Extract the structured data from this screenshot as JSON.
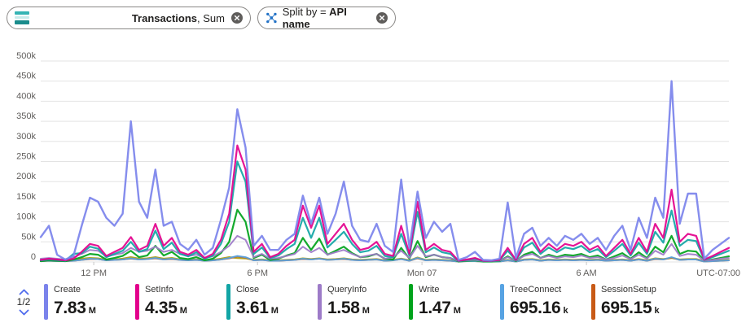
{
  "filters": {
    "metric": {
      "name": "Transactions",
      "aggregation": ", Sum"
    },
    "split": {
      "prefix": "Split by = ",
      "field": "API name"
    }
  },
  "chart_data": {
    "type": "line",
    "title": "",
    "xlabel": "",
    "ylabel": "",
    "grid": true,
    "legend_position": "bottom",
    "ylim": [
      0,
      500000
    ],
    "values_unit": "thousands",
    "y_axis": [
      {
        "label": "500k",
        "value": 500
      },
      {
        "label": "450k",
        "value": 450
      },
      {
        "label": "400k",
        "value": 400
      },
      {
        "label": "350k",
        "value": 350
      },
      {
        "label": "300k",
        "value": 300
      },
      {
        "label": "250k",
        "value": 250
      },
      {
        "label": "200k",
        "value": 200
      },
      {
        "label": "150k",
        "value": 150
      },
      {
        "label": "100k",
        "value": 100
      },
      {
        "label": "50k",
        "value": 50
      },
      {
        "label": "0",
        "value": 0
      }
    ],
    "x_ticks": [
      {
        "label": "12 PM",
        "pos": 0.077
      },
      {
        "label": "6 PM",
        "pos": 0.315
      },
      {
        "label": "Mon 07",
        "pos": 0.554
      },
      {
        "label": "6 AM",
        "pos": 0.793
      }
    ],
    "timezone_label": "UTC-07:00",
    "series": [
      {
        "name": "Create",
        "color": "#7B83EB",
        "width": 2.4,
        "values": [
          62,
          90,
          18,
          6,
          15,
          90,
          160,
          150,
          110,
          90,
          120,
          350,
          150,
          110,
          230,
          90,
          100,
          45,
          30,
          55,
          18,
          35,
          105,
          185,
          380,
          285,
          40,
          65,
          30,
          30,
          55,
          70,
          165,
          95,
          160,
          70,
          120,
          200,
          90,
          55,
          50,
          95,
          40,
          25,
          205,
          35,
          175,
          60,
          100,
          75,
          95,
          5,
          12,
          25,
          5,
          4,
          8,
          148,
          10,
          70,
          85,
          40,
          60,
          40,
          65,
          55,
          70,
          45,
          60,
          30,
          65,
          90,
          30,
          110,
          60,
          160,
          110,
          450,
          95,
          170,
          170,
          8,
          30,
          45,
          60
        ]
      },
      {
        "name": "SetInfo",
        "color": "#E3008C",
        "width": 2.2,
        "values": [
          5,
          8,
          6,
          4,
          8,
          25,
          45,
          40,
          15,
          25,
          35,
          62,
          30,
          40,
          95,
          40,
          60,
          25,
          18,
          30,
          10,
          20,
          55,
          120,
          290,
          230,
          25,
          45,
          12,
          20,
          40,
          55,
          140,
          85,
          140,
          45,
          70,
          95,
          55,
          30,
          35,
          50,
          20,
          15,
          90,
          20,
          150,
          30,
          45,
          30,
          25,
          3,
          6,
          10,
          3,
          3,
          5,
          35,
          5,
          45,
          60,
          25,
          45,
          30,
          45,
          40,
          50,
          30,
          40,
          15,
          35,
          55,
          20,
          60,
          25,
          95,
          60,
          180,
          50,
          70,
          65,
          6,
          15,
          25,
          35
        ]
      },
      {
        "name": "Close",
        "color": "#12A5A5",
        "width": 2.2,
        "values": [
          4,
          6,
          5,
          3,
          20,
          22,
          38,
          33,
          12,
          20,
          28,
          50,
          25,
          32,
          78,
          32,
          48,
          20,
          14,
          24,
          8,
          16,
          45,
          100,
          250,
          200,
          20,
          36,
          10,
          16,
          32,
          45,
          110,
          60,
          110,
          36,
          55,
          75,
          45,
          24,
          28,
          40,
          15,
          12,
          70,
          16,
          125,
          24,
          36,
          24,
          20,
          2,
          5,
          8,
          2,
          2,
          4,
          28,
          4,
          36,
          48,
          20,
          36,
          24,
          36,
          32,
          40,
          24,
          32,
          12,
          28,
          45,
          16,
          48,
          20,
          75,
          48,
          128,
          40,
          55,
          52,
          5,
          12,
          20,
          28
        ]
      },
      {
        "name": "QueryInfo",
        "color": "#9D7BC8",
        "width": 2,
        "values": [
          8,
          10,
          8,
          6,
          12,
          20,
          30,
          28,
          14,
          18,
          22,
          35,
          25,
          28,
          38,
          25,
          30,
          20,
          15,
          18,
          10,
          14,
          25,
          40,
          65,
          55,
          12,
          20,
          8,
          10,
          15,
          20,
          38,
          24,
          35,
          18,
          24,
          30,
          20,
          12,
          16,
          20,
          8,
          12,
          28,
          10,
          40,
          14,
          18,
          12,
          10,
          2,
          4,
          5,
          2,
          2,
          3,
          12,
          3,
          15,
          20,
          10,
          15,
          10,
          14,
          12,
          16,
          10,
          12,
          6,
          10,
          16,
          7,
          18,
          8,
          28,
          18,
          45,
          15,
          20,
          18,
          3,
          5,
          8,
          10
        ]
      },
      {
        "name": "Write",
        "color": "#00A31B",
        "width": 2.2,
        "values": [
          2,
          4,
          3,
          2,
          6,
          12,
          20,
          18,
          6,
          10,
          15,
          28,
          12,
          16,
          40,
          16,
          25,
          10,
          7,
          12,
          4,
          8,
          22,
          50,
          130,
          100,
          10,
          18,
          5,
          8,
          16,
          22,
          60,
          30,
          58,
          18,
          28,
          38,
          22,
          12,
          14,
          20,
          8,
          6,
          35,
          8,
          52,
          12,
          18,
          12,
          10,
          1,
          3,
          4,
          1,
          1,
          2,
          14,
          2,
          18,
          25,
          10,
          18,
          12,
          18,
          16,
          20,
          12,
          16,
          6,
          14,
          22,
          8,
          24,
          10,
          38,
          24,
          65,
          20,
          28,
          26,
          3,
          6,
          10,
          14
        ]
      },
      {
        "name": "TreeConnect",
        "color": "#57A3E3",
        "width": 2,
        "values": [
          2,
          3,
          2,
          2,
          3,
          5,
          8,
          7,
          4,
          5,
          6,
          9,
          6,
          7,
          10,
          6,
          8,
          5,
          4,
          5,
          3,
          4,
          6,
          10,
          15,
          12,
          4,
          5,
          3,
          3,
          4,
          5,
          8,
          6,
          8,
          5,
          6,
          8,
          5,
          4,
          5,
          6,
          3,
          4,
          7,
          3,
          10,
          4,
          5,
          4,
          3,
          1,
          2,
          2,
          1,
          1,
          1,
          4,
          1,
          5,
          6,
          3,
          5,
          4,
          5,
          4,
          5,
          4,
          5,
          3,
          4,
          5,
          3,
          6,
          3,
          8,
          6,
          12,
          5,
          6,
          6,
          1,
          2,
          3,
          4
        ]
      },
      {
        "name": "SessionSetup",
        "color": "#C85A16",
        "width": 2,
        "values": [
          2,
          3,
          2,
          2,
          3,
          5,
          7,
          7,
          4,
          5,
          6,
          8,
          6,
          7,
          9,
          6,
          7,
          5,
          4,
          5,
          3,
          4,
          6,
          9,
          14,
          11,
          4,
          5,
          3,
          3,
          4,
          5,
          7,
          6,
          8,
          5,
          6,
          7,
          5,
          4,
          5,
          6,
          3,
          4,
          7,
          3,
          9,
          4,
          5,
          4,
          3,
          1,
          2,
          2,
          1,
          1,
          1,
          4,
          1,
          5,
          6,
          3,
          5,
          4,
          5,
          4,
          5,
          4,
          5,
          3,
          4,
          5,
          3,
          6,
          3,
          7,
          6,
          11,
          5,
          6,
          6,
          1,
          2,
          3,
          4
        ]
      },
      {
        "name": "",
        "color": "#AA9C0F",
        "width": 2.2,
        "values": [
          3,
          4,
          3,
          3,
          5,
          8,
          10,
          9,
          5,
          6,
          8,
          12,
          8,
          9,
          12,
          8,
          10,
          6,
          5,
          6,
          4,
          5,
          8,
          12,
          10,
          9,
          5,
          6,
          4,
          4,
          5,
          6,
          9,
          7,
          9,
          6,
          7,
          9,
          6,
          5,
          6,
          7,
          4,
          5,
          8,
          4,
          11,
          5,
          6,
          5,
          4,
          2,
          3,
          3,
          2,
          2,
          2,
          5,
          2,
          6,
          7,
          4,
          6,
          5,
          6,
          5,
          6,
          5,
          6,
          4,
          5,
          6,
          4,
          7,
          4,
          9,
          7,
          10,
          6,
          7,
          7,
          2,
          3,
          4,
          5
        ]
      }
    ]
  },
  "legend": {
    "page_indicator": "1/2",
    "items": [
      {
        "name": "Create",
        "color": "#7B83EB",
        "value": "7.83",
        "unit": "M"
      },
      {
        "name": "SetInfo",
        "color": "#E3008C",
        "value": "4.35",
        "unit": "M"
      },
      {
        "name": "Close",
        "color": "#12A5A5",
        "value": "3.61",
        "unit": "M"
      },
      {
        "name": "QueryInfo",
        "color": "#9D7BC8",
        "value": "1.58",
        "unit": "M"
      },
      {
        "name": "Write",
        "color": "#00A31B",
        "value": "1.47",
        "unit": "M"
      },
      {
        "name": "TreeConnect",
        "color": "#57A3E3",
        "value": "695.16",
        "unit": "k"
      },
      {
        "name": "SessionSetup",
        "color": "#C85A16",
        "value": "695.15",
        "unit": "k"
      }
    ]
  }
}
